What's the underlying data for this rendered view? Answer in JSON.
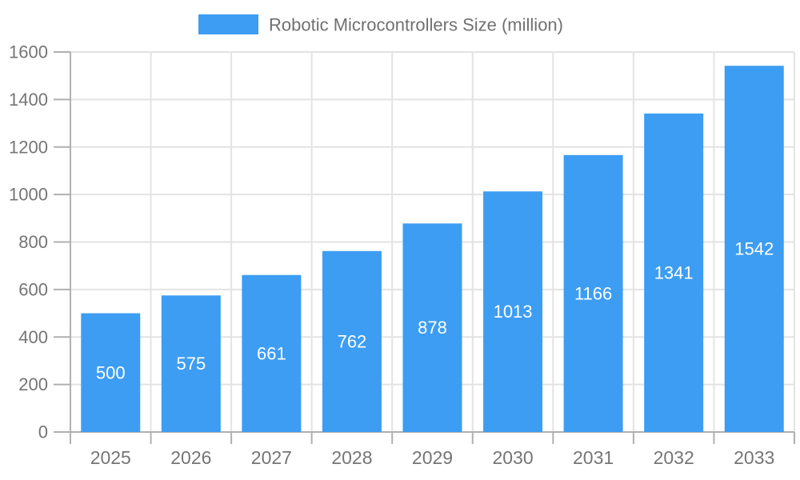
{
  "legend": {
    "label": "Robotic Microcontrollers Size (million)"
  },
  "colors": {
    "bar": "#3D9DF3",
    "grid_line": "#E3E3E3",
    "axis_line": "#B0B0B0",
    "axis_label": "#757575",
    "bar_label": "#FFFFFF",
    "legend_text": "#707070",
    "background": "#FFFFFF"
  },
  "chart_data": {
    "type": "bar",
    "title": "Robotic Microcontrollers Size (million)",
    "categories": [
      "2025",
      "2026",
      "2027",
      "2028",
      "2029",
      "2030",
      "2031",
      "2032",
      "2033"
    ],
    "values": [
      500,
      575,
      661,
      762,
      878,
      1013,
      1166,
      1341,
      1542
    ],
    "xlabel": "",
    "ylabel": "",
    "ylim": [
      0,
      1600
    ],
    "yticks": [
      0,
      200,
      400,
      600,
      800,
      1000,
      1200,
      1400,
      1600
    ],
    "grid": true,
    "legend_position": "top-center",
    "value_labels": "inside-center"
  }
}
